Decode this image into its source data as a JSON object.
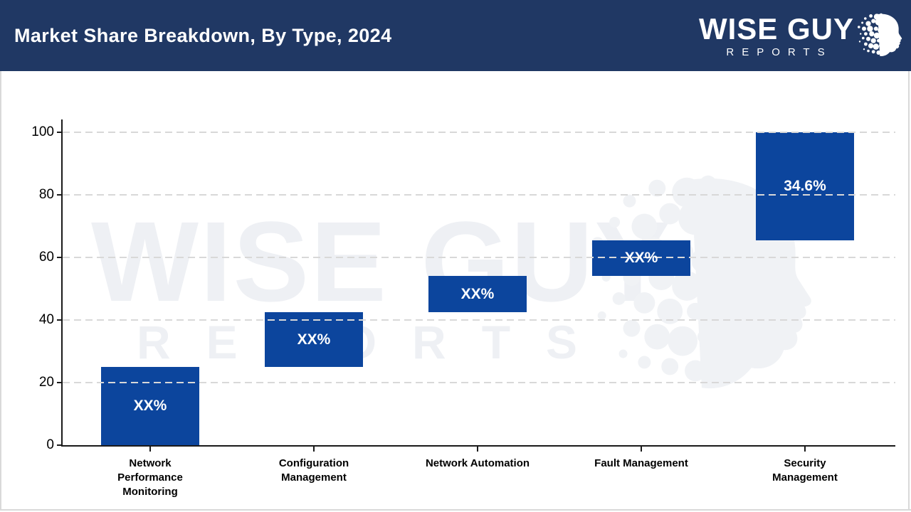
{
  "header": {
    "title": "Market Share Breakdown, By Type, 2024",
    "logo": {
      "brand": "WISE GUY",
      "sub": "REPORTS"
    }
  },
  "watermark": {
    "brand": "WISE GUY",
    "sub": "REPORTS"
  },
  "chart_data": {
    "type": "bar",
    "subtype": "waterfall-floating-bars",
    "title": "Market Share Breakdown, By Type, 2024",
    "categories": [
      "Network\nPerformance\nMonitoring",
      "Configuration\nManagement",
      "Network Automation",
      "Fault Management",
      "Security\nManagement"
    ],
    "series": [
      {
        "name": "Market share (%)",
        "ranges": [
          [
            0,
            25
          ],
          [
            25,
            42.5
          ],
          [
            42.5,
            54
          ],
          [
            54,
            65.4
          ],
          [
            65.4,
            100
          ]
        ],
        "labels": [
          "XX%",
          "XX%",
          "XX%",
          "XX%",
          "34.6%"
        ]
      }
    ],
    "ylim": [
      0,
      100
    ],
    "yticks": [
      0,
      20,
      40,
      60,
      80,
      100
    ],
    "xlabel": "",
    "ylabel": "",
    "grid": "horizontal dashed gridlines drawn above bars",
    "legend": "none",
    "bar_color": "#0c459d",
    "label_color": "#ffffff"
  },
  "colors": {
    "header_bg": "#203864",
    "bar": "#0c459d",
    "gridline": "#d8d8d8",
    "axis": "#1a1a1a",
    "watermark": "#eef0f4",
    "page_border": "#d9d9d9"
  }
}
